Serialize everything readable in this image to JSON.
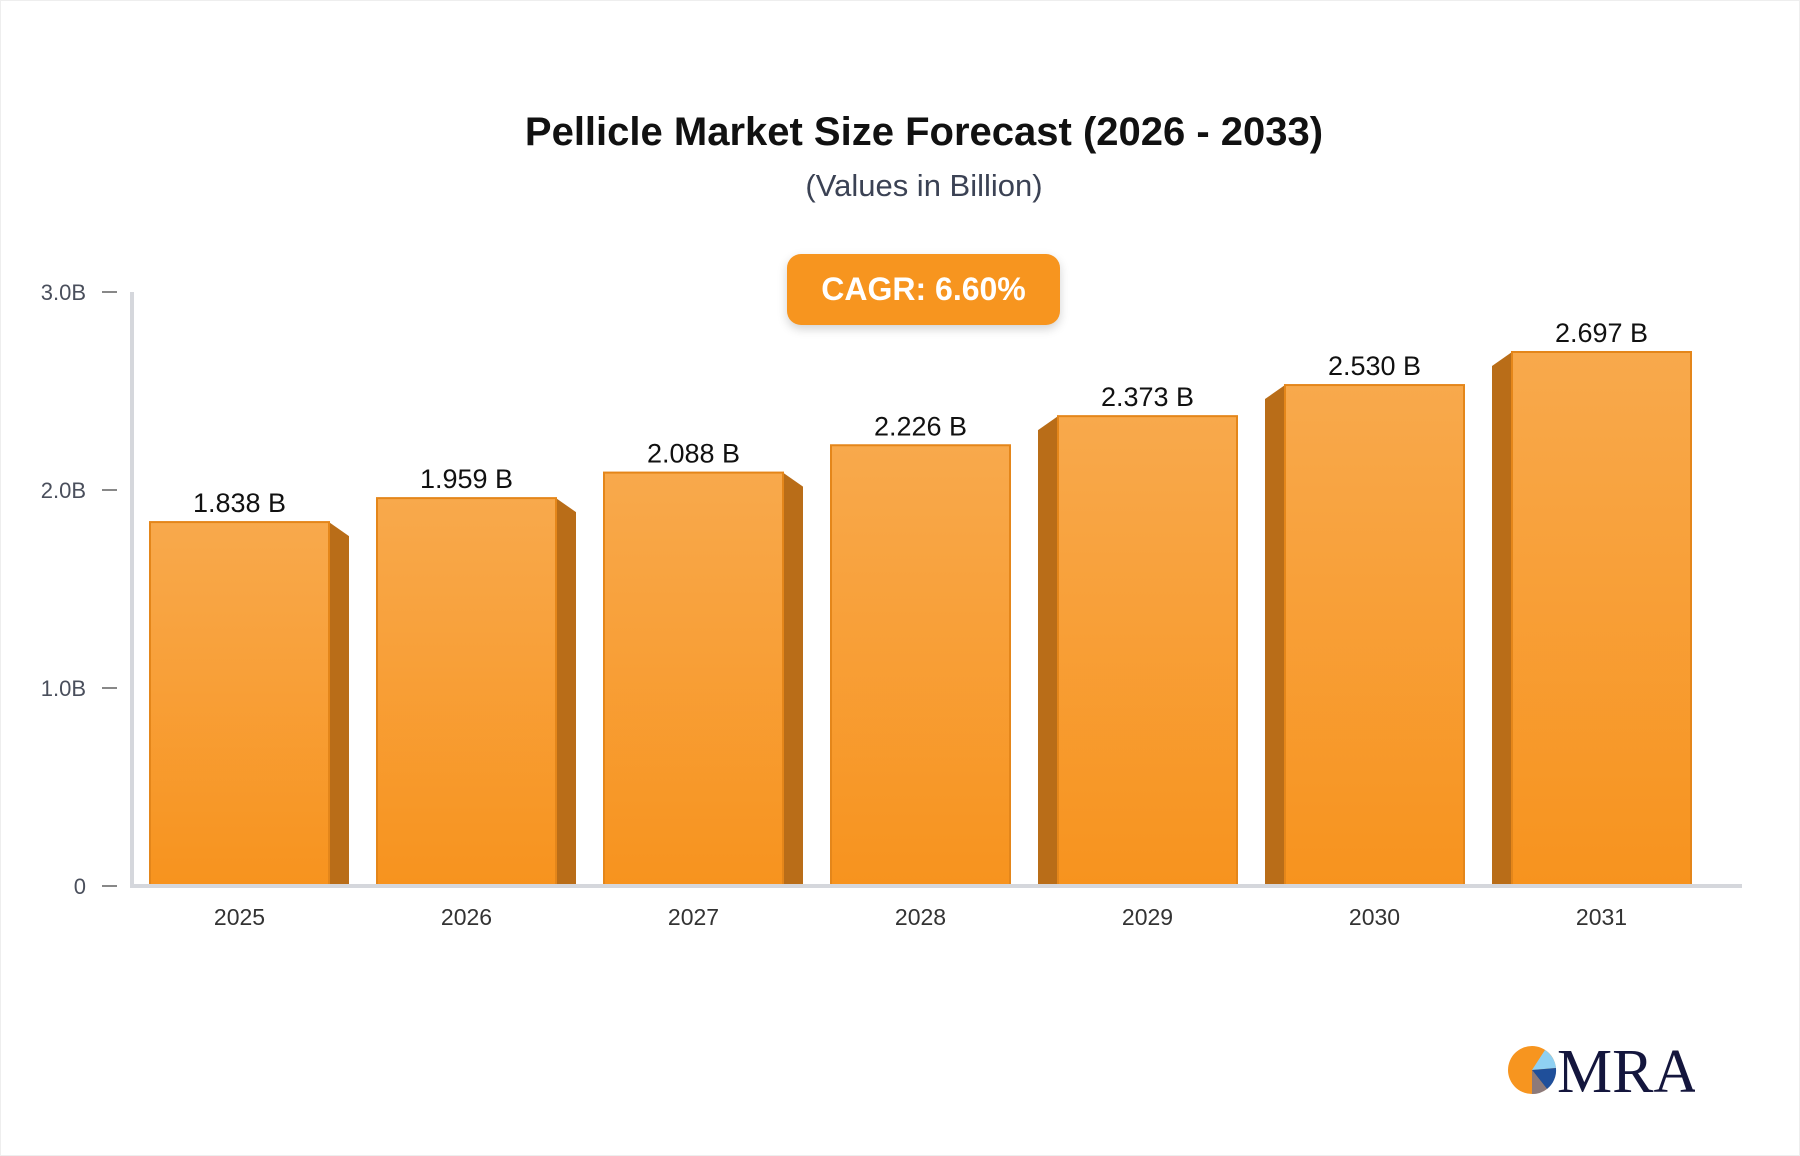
{
  "chart_data": {
    "type": "bar",
    "title": "Pellicle Market Size Forecast (2026 - 2033)",
    "subtitle": "(Values in Billion)",
    "annotation": "CAGR: 6.60%",
    "categories": [
      "2025",
      "2026",
      "2027",
      "2028",
      "2029",
      "2030",
      "2031"
    ],
    "values": [
      1.838,
      1.959,
      2.088,
      2.226,
      2.373,
      2.53,
      2.697
    ],
    "data_labels": [
      "1.838 B",
      "1.959 B",
      "2.088 B",
      "2.226 B",
      "2.373 B",
      "2.530 B",
      "2.697 B"
    ],
    "y_ticks": [
      {
        "value": 0,
        "label": "0"
      },
      {
        "value": 1,
        "label": "1.0B"
      },
      {
        "value": 2,
        "label": "2.0B"
      },
      {
        "value": 3,
        "label": "3.0B"
      }
    ],
    "ylim": [
      0,
      3
    ],
    "grid": false,
    "colors": {
      "bar_top": "#f8a94c",
      "bar_bottom": "#f7931e",
      "bar_side": "#b96d18",
      "badge": "#f7951f"
    }
  },
  "logo": {
    "text": "MRA"
  }
}
